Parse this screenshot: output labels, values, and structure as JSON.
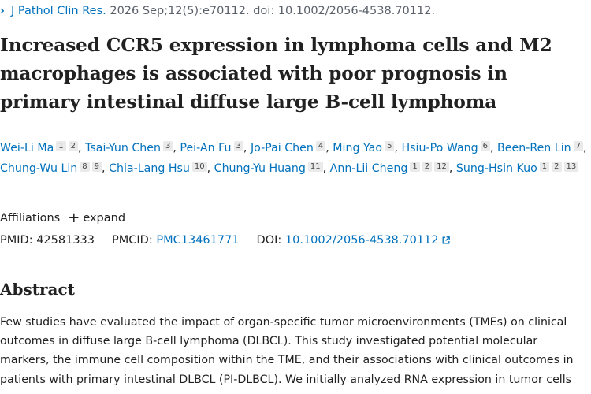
{
  "citation": {
    "journal": "J Pathol Clin Res.",
    "details": " 2026 Sep;12(5):e70112. doi: 10.1002/2056-4538.70112."
  },
  "title_lines": [
    "Increased CCR5 expression in lymphoma cells and M2",
    "macrophages is associated with poor prognosis in",
    "primary intestinal diffuse large B-cell lymphoma"
  ],
  "authors": [
    {
      "name": "Wei-Li Ma",
      "affils": [
        "1",
        "2"
      ]
    },
    {
      "name": "Tsai-Yun Chen",
      "affils": [
        "3"
      ]
    },
    {
      "name": "Pei-An Fu",
      "affils": [
        "3"
      ]
    },
    {
      "name": "Jo-Pai Chen",
      "affils": [
        "4"
      ]
    },
    {
      "name": "Ming Yao",
      "affils": [
        "5"
      ]
    },
    {
      "name": "Hsiu-Po Wang",
      "affils": [
        "6"
      ]
    },
    {
      "name": "Been-Ren Lin",
      "affils": [
        "7"
      ]
    },
    {
      "name": "Chung-Wu Lin",
      "affils": [
        "8",
        "9"
      ]
    },
    {
      "name": "Chia-Lang Hsu",
      "affils": [
        "10"
      ]
    },
    {
      "name": "Chung-Yu Huang",
      "affils": [
        "11"
      ]
    },
    {
      "name": "Ann-Lii Cheng",
      "affils": [
        "1",
        "2",
        "12"
      ]
    },
    {
      "name": "Sung-Hsin Kuo",
      "affils": [
        "1",
        "2",
        "13"
      ]
    }
  ],
  "affiliations": {
    "label": "Affiliations",
    "expand_label": "expand"
  },
  "ids": {
    "pmid_label": "PMID:",
    "pmid": "42581333",
    "pmcid_label": "PMCID:",
    "pmcid": "PMC13461771",
    "doi_label": "DOI:",
    "doi": "10.1002/2056-4538.70112"
  },
  "abstract": {
    "heading": "Abstract",
    "lines": [
      "Few studies have evaluated the impact of organ-specific tumor microenvironments (TMEs) on clinical",
      "outcomes in diffuse large B-cell lymphoma (DLBCL). This study investigated potential molecular",
      "markers, the immune cell composition within the TME, and their associations with clinical outcomes in",
      "patients with primary intestinal DLBCL (PI-DLBCL). We initially analyzed RNA expression in tumor cells"
    ]
  },
  "colors": {
    "link": "#0071bc",
    "text": "#212121",
    "muted": "#5b616b",
    "badge_bg": "#eaeaea"
  }
}
